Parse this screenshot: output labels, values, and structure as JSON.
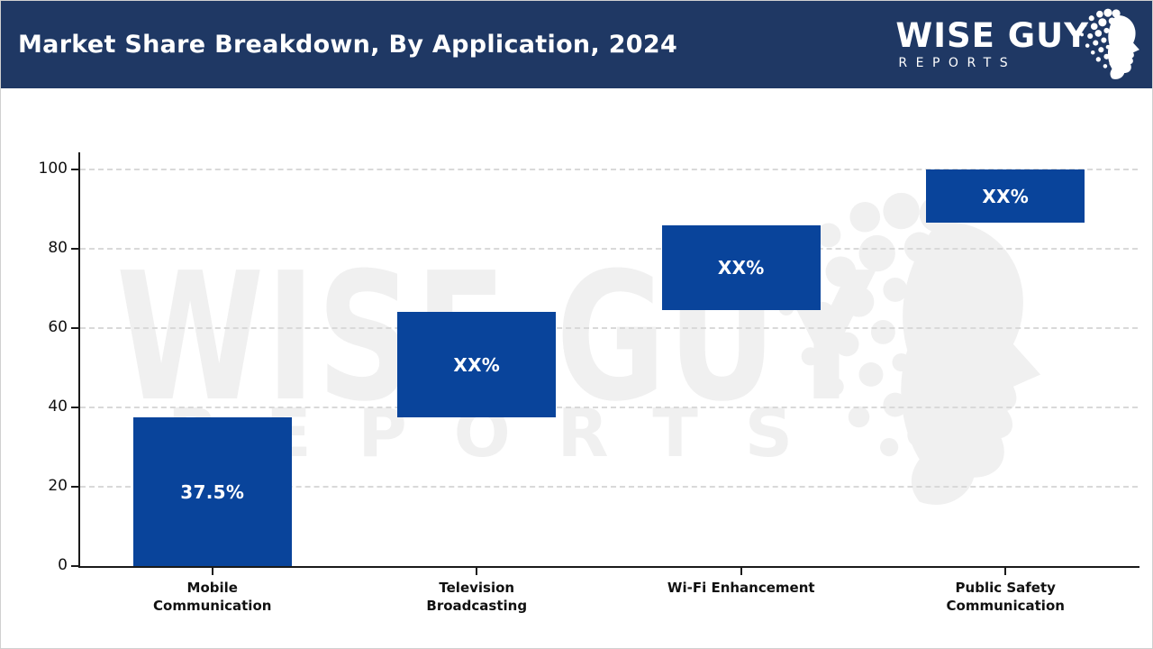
{
  "header": {
    "title": "Market Share Breakdown, By Application, 2024",
    "logo": {
      "name": "WISE GUY",
      "sub": "REPORTS"
    }
  },
  "watermark": {
    "line1": "WISE GUY",
    "line2": "REPORTS"
  },
  "colors": {
    "header_bg": "#1f3864",
    "bar": "#09449b",
    "bar_label": "#ffffff",
    "grid": "#d9d9d9",
    "axis": "#1a1a1a",
    "watermark": "#f0f0f0"
  },
  "chart_data": {
    "type": "bar",
    "subtype": "waterfall-market-share",
    "title": "Market Share Breakdown, By Application, 2024",
    "categories": [
      "Mobile Communication",
      "Television Broadcasting",
      "Wi-Fi Enhancement",
      "Public Safety Communication"
    ],
    "category_lines": [
      [
        "Mobile",
        "Communication"
      ],
      [
        "Television",
        "Broadcasting"
      ],
      [
        "Wi-Fi Enhancement"
      ],
      [
        "Public Safety",
        "Communication"
      ]
    ],
    "segments": [
      {
        "category": "Mobile Communication",
        "start": 0,
        "end": 37.5,
        "label": "37.5%"
      },
      {
        "category": "Television Broadcasting",
        "start": 37.5,
        "end": 64,
        "label": "XX%"
      },
      {
        "category": "Wi-Fi Enhancement",
        "start": 64.5,
        "end": 86,
        "label": "XX%"
      },
      {
        "category": "Public Safety Communication",
        "start": 86.5,
        "end": 100,
        "label": "XX%"
      }
    ],
    "xlabel": "",
    "ylabel": "",
    "ylim": [
      0,
      100
    ],
    "yticks": [
      0,
      20,
      40,
      60,
      80,
      100
    ],
    "grid": true,
    "legend": false,
    "units": "percent"
  }
}
